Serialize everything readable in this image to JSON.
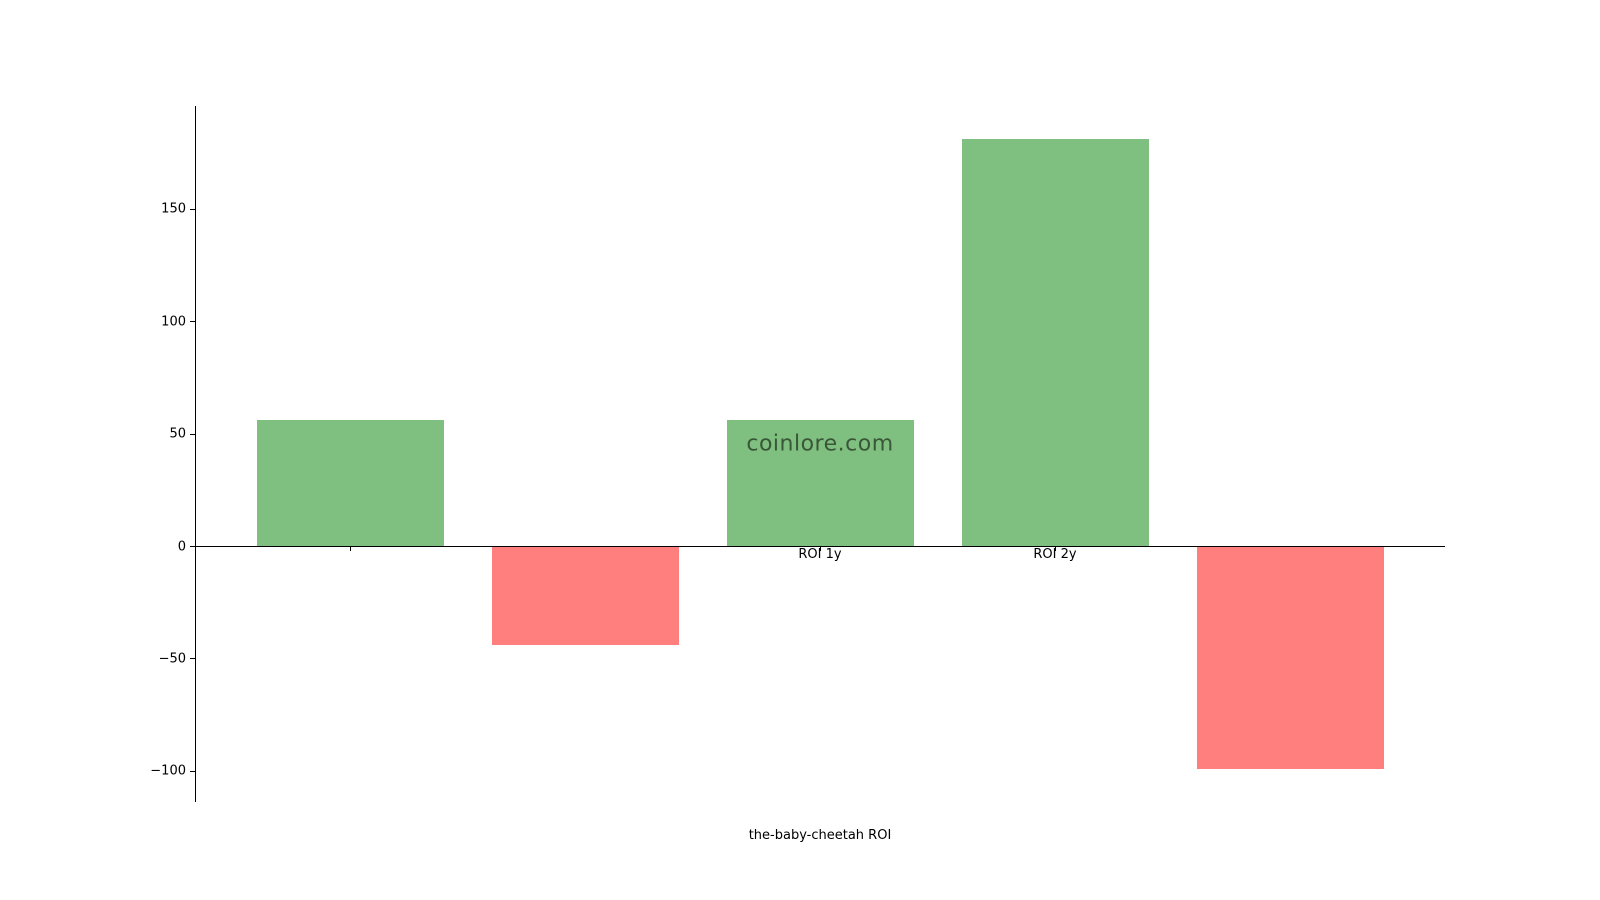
{
  "chart_data": {
    "type": "bar",
    "title": "the-baby-cheetah ROI",
    "watermark": "coinlore.com",
    "categories": [
      "",
      "",
      "ROI 1y",
      "ROI 2y",
      ""
    ],
    "values": [
      56,
      -44,
      56,
      181,
      -99
    ],
    "xlabel": "",
    "ylabel": "",
    "y_ticks": [
      150,
      100,
      50,
      0,
      -50,
      -100
    ],
    "ylim": [
      -114,
      196
    ],
    "grid": false,
    "legend_position": "none",
    "colors": {
      "positive_bar": "#7fbf7f",
      "negative_bar": "#ff7f7f",
      "axis": "#000000",
      "watermark": "rgba(0,0,0,0.55)",
      "background": "#ffffff"
    }
  }
}
